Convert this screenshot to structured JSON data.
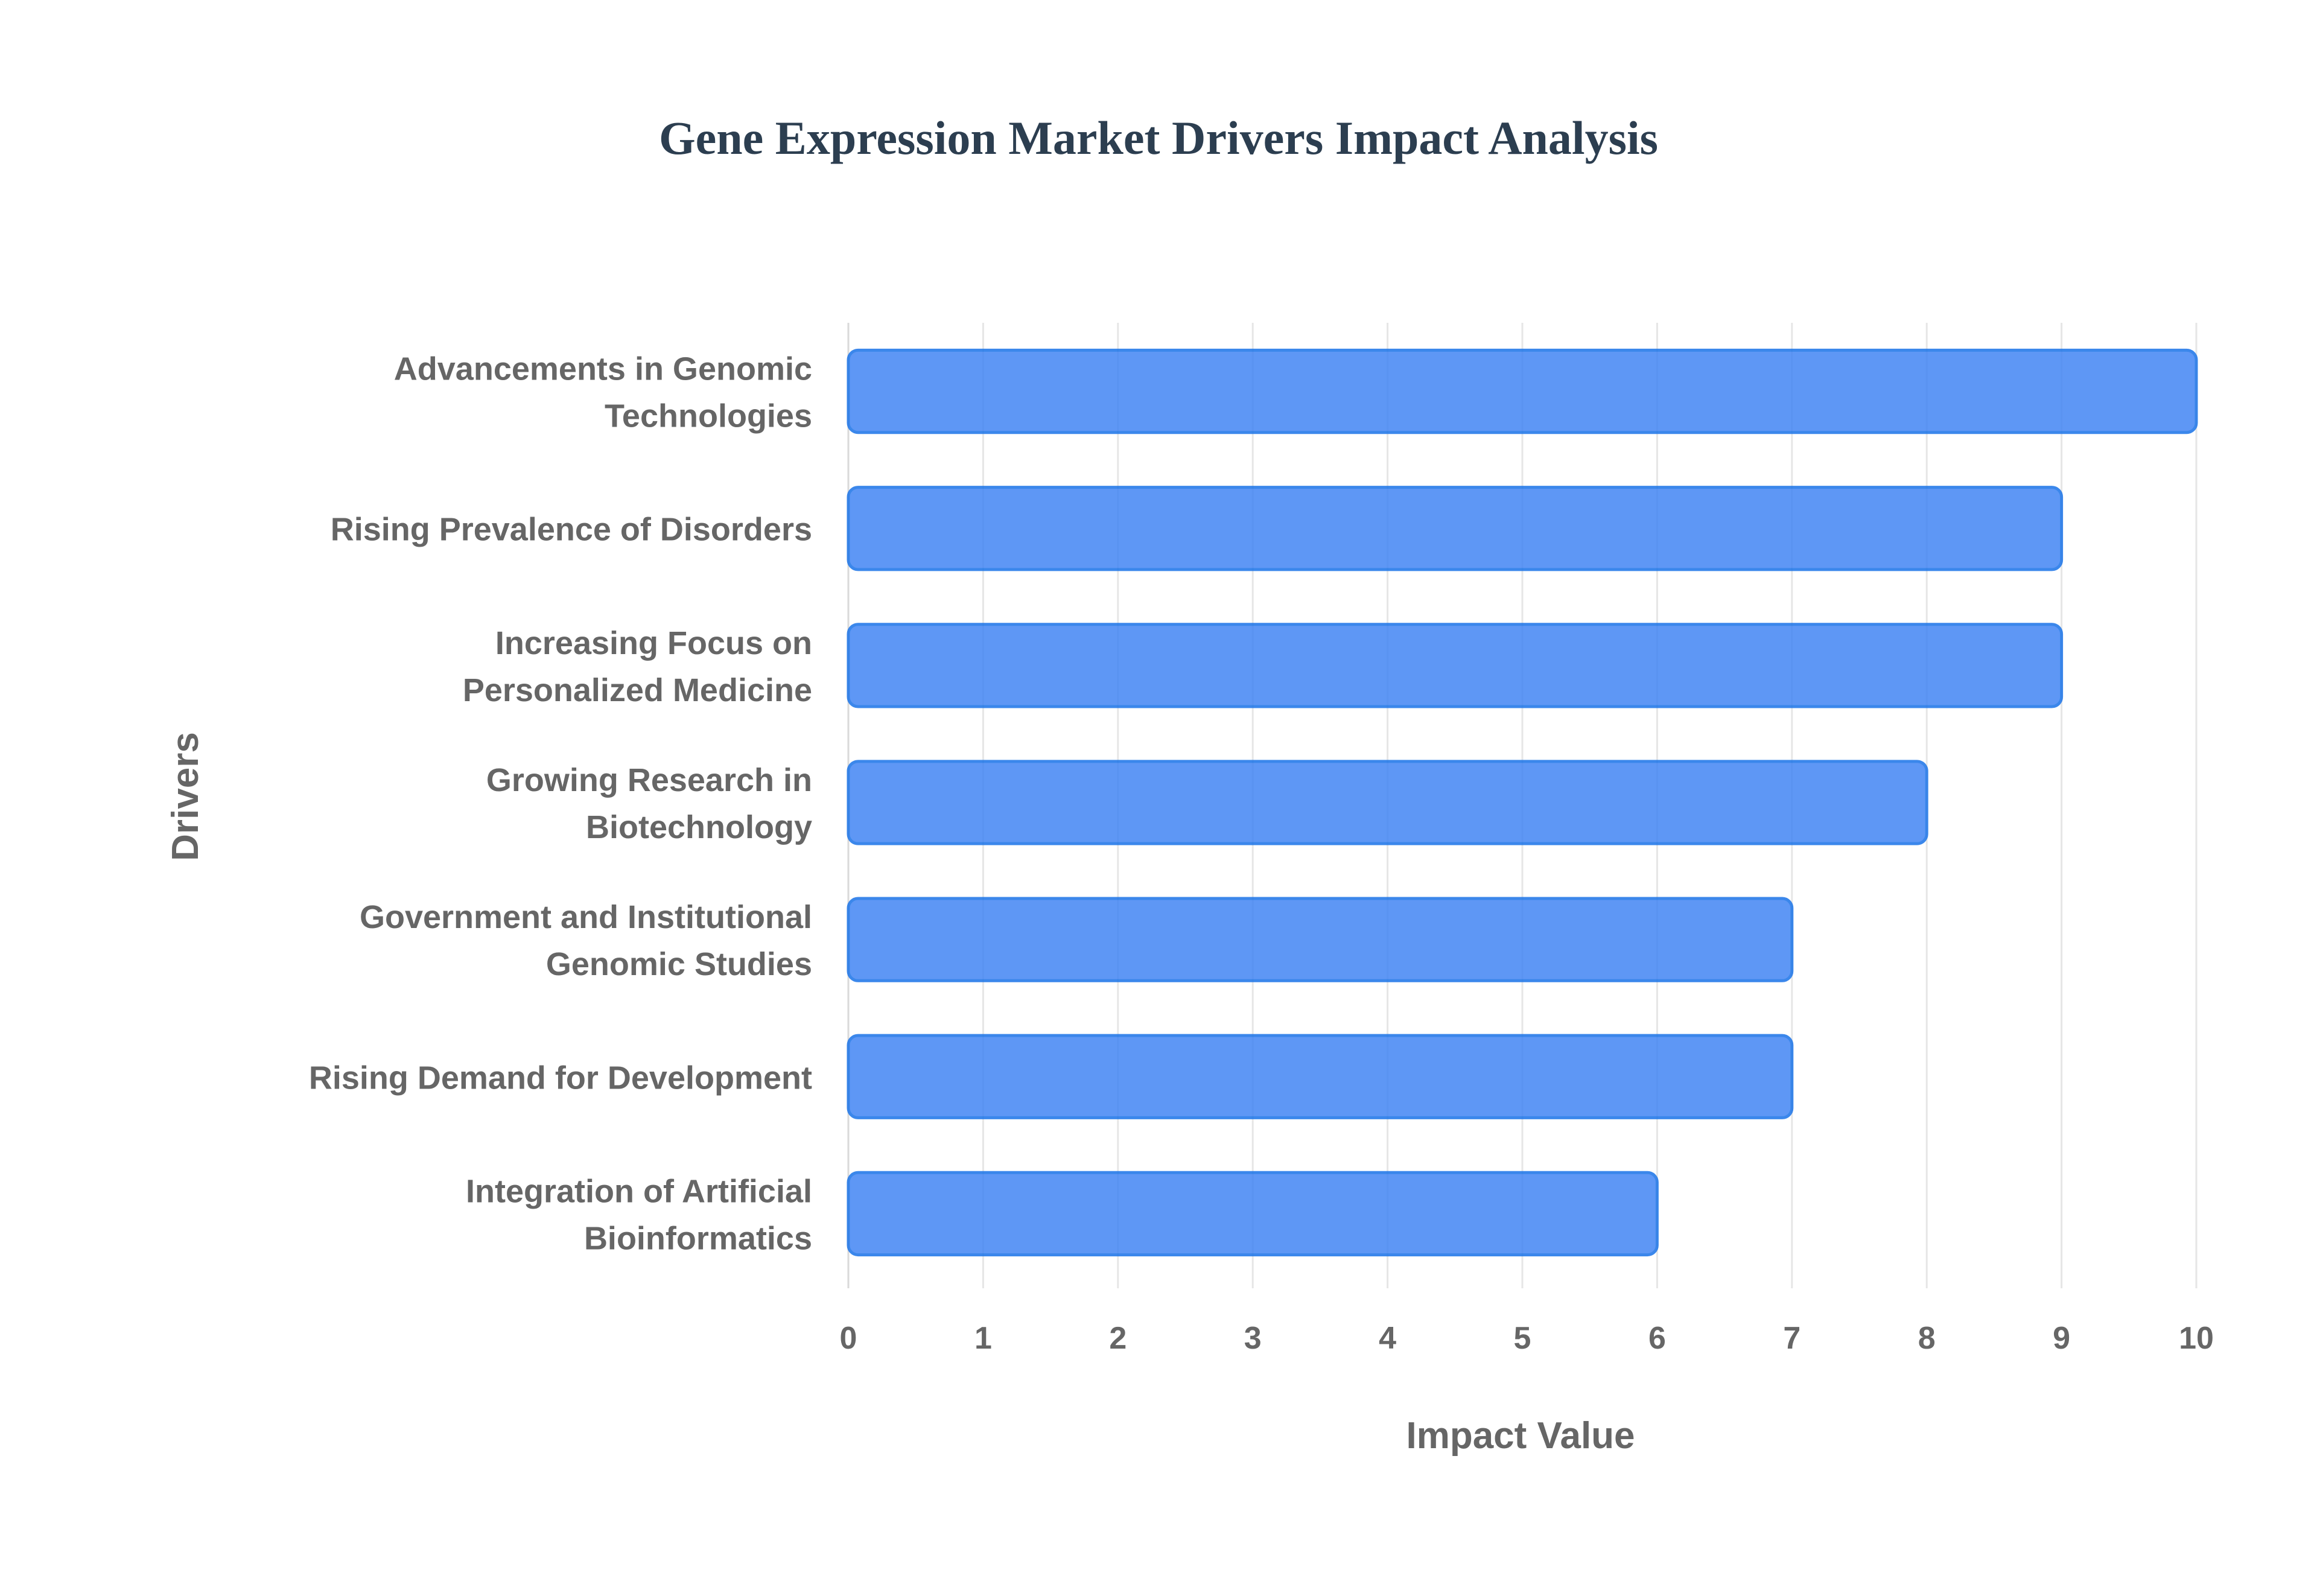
{
  "chart_data": {
    "type": "bar",
    "orientation": "horizontal",
    "title": "Gene Expression Market Drivers Impact Analysis",
    "xlabel": "Impact Value",
    "ylabel": "Drivers",
    "xlim": [
      0,
      10
    ],
    "xticks": [
      "0",
      "1",
      "2",
      "3",
      "4",
      "5",
      "6",
      "7",
      "8",
      "9",
      "10"
    ],
    "categories": [
      [
        "Advancements in Genomic",
        "Technologies"
      ],
      [
        "Rising Prevalence of Disorders"
      ],
      [
        "Increasing Focus on",
        "Personalized Medicine"
      ],
      [
        "Growing Research in",
        "Biotechnology"
      ],
      [
        "Government and Institutional",
        "Genomic Studies"
      ],
      [
        "Rising Demand for Development"
      ],
      [
        "Integration of Artificial",
        "Bioinformatics"
      ]
    ],
    "values": [
      10,
      9,
      9,
      8,
      7,
      7,
      6
    ],
    "grid": true,
    "legend": "none",
    "colors": {
      "bar_fill": "#4285f4",
      "bar_stroke": "#1a73e8",
      "title": "#2c3e50",
      "text": "#666666",
      "grid": "#e6e6e6"
    }
  }
}
